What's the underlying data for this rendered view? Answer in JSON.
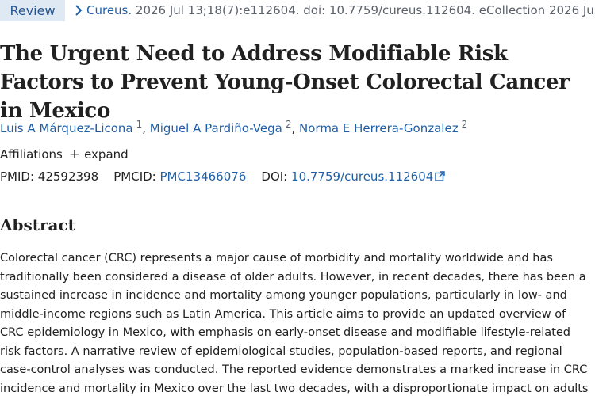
{
  "header": {
    "badge": "Review",
    "journal": "Cureus.",
    "citation_rest": " 2026 Jul 13;18(7):e112604. doi: 10.7759/cureus.112604. eCollection 2026 Jul."
  },
  "article": {
    "title": "The Urgent Need to Address Modifiable Risk Factors to Prevent Young-Onset Colorectal Cancer in Mexico"
  },
  "authors": [
    {
      "name": "Luis A Márquez-Licona",
      "sup": "1"
    },
    {
      "name": "Miguel A Pardiño-Vega",
      "sup": "2"
    },
    {
      "name": "Norma E Herrera-Gonzalez",
      "sup": "2"
    }
  ],
  "affiliations": {
    "label": "Affiliations",
    "expand": "expand"
  },
  "identifiers": {
    "pmid_label": "PMID:",
    "pmid": "42592398",
    "pmcid_label": "PMCID:",
    "pmcid": "PMC13466076",
    "doi_label": "DOI:",
    "doi": "10.7759/cureus.112604"
  },
  "abstract": {
    "heading": "Abstract",
    "text": "Colorectal cancer (CRC) represents a major cause of morbidity and mortality worldwide and has traditionally been considered a disease of older adults. However, in recent decades, there has been a sustained increase in incidence and mortality among younger populations, particularly in low- and middle-income regions such as Latin America. This article aims to provide an updated overview of CRC epidemiology in Mexico, with emphasis on early-onset disease and modifiable lifestyle-related risk factors. A narrative review of epidemiological studies, population-based reports, and regional case-control analyses was conducted. The reported evidence demonstrates a marked increase in CRC incidence and mortality in Mexico over the last two decades, with a disproportionate impact on adults"
  },
  "colors": {
    "link": "#1f5fa8",
    "badge_bg": "#dfe9f4",
    "text": "#212121"
  }
}
